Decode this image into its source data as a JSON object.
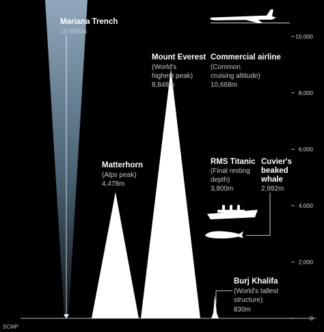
{
  "chart_data": {
    "type": "area",
    "source": "SCMP",
    "y_ticks": [
      "10,000",
      "8,000",
      "6,000",
      "4,000",
      "2,000",
      "0"
    ],
    "ylim": [
      0,
      11000
    ],
    "items": [
      {
        "name": "Mariana Trench",
        "lines": [
          "10,994m"
        ],
        "value": 10994,
        "kind": "depth"
      },
      {
        "name": "Mount Everest",
        "lines": [
          "(World's",
          "highest peak)",
          "8,848m"
        ],
        "value": 8848,
        "kind": "height"
      },
      {
        "name": "Commercial airline",
        "lines": [
          "(Common",
          "cruising altitude)",
          "10,668m"
        ],
        "value": 10668,
        "kind": "height"
      },
      {
        "name": "Matterhorn",
        "lines": [
          "(Alps peak)",
          "4,478m"
        ],
        "value": 4478,
        "kind": "height"
      },
      {
        "name": "RMS Titanic",
        "lines": [
          "(Final resting",
          "depth)",
          "3,800m"
        ],
        "value": 3800,
        "kind": "depth"
      },
      {
        "name_lines": [
          "Cuvier's",
          "beaked",
          "whale"
        ],
        "lines": [
          "2,992m"
        ],
        "value": 2992,
        "kind": "depth"
      },
      {
        "name": "Burj Khalifa",
        "lines": [
          "(World's tallest",
          "structure)",
          "830m"
        ],
        "value": 830,
        "kind": "height"
      }
    ],
    "colors": {
      "background": "#000000",
      "peak": "#ffffff",
      "trench_top": "#8aa3b6",
      "guide": "#ffffff"
    }
  }
}
